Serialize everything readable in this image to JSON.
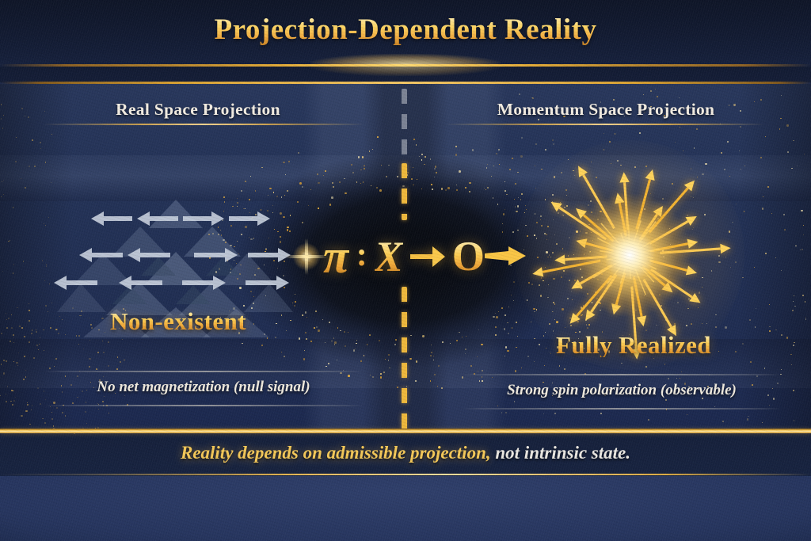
{
  "title": "Projection-Dependent Reality",
  "panels": {
    "left": {
      "header": "Real Space Projection",
      "state": "Non-existent",
      "caption": "No net magnetization (null signal)",
      "spin_arrow_rows": [
        [
          "left",
          "left",
          "right",
          "right"
        ],
        [
          "left",
          "left",
          "right",
          "right"
        ],
        [
          "left",
          "left",
          "right",
          "right"
        ]
      ]
    },
    "right": {
      "header": "Momentum Space Projection",
      "state": "Fully Realized",
      "caption": "Strong spin polarization (observable)",
      "burst_style": "gold arrows radiating outward from bright core"
    }
  },
  "projection": {
    "pi": "π",
    "colon": ":",
    "domain": "X",
    "maps_to": "→",
    "codomain": "O",
    "output_arrow": "→"
  },
  "footer": {
    "emphasis": "Reality depends on admissible projection,",
    "rest": " not intrinsic state."
  },
  "colors": {
    "gold": "#f5c043",
    "gold_bright": "#ffe9a8",
    "navy": "#1b2a52",
    "navy_dark": "#0d1730",
    "ivory": "#f2ece0",
    "arrow_gray": "#c7d0dd"
  }
}
